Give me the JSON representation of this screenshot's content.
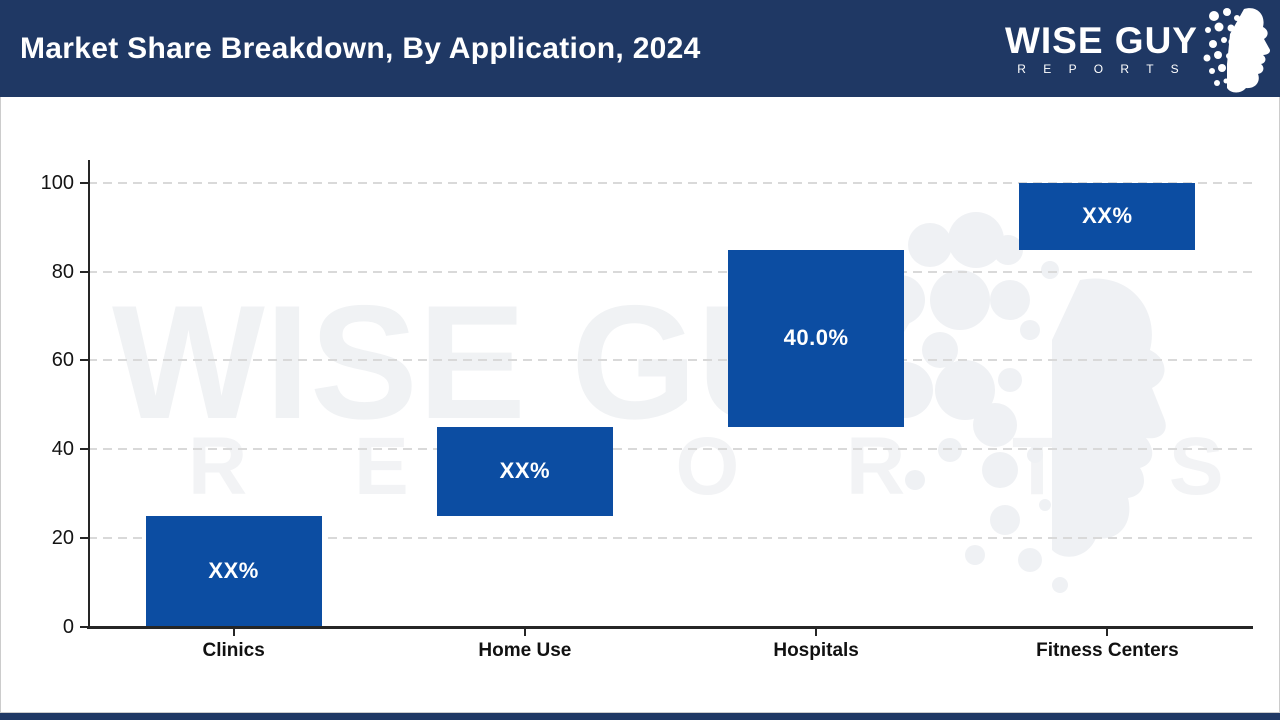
{
  "header": {
    "title": "Market Share Breakdown, By Application, 2024",
    "logo": {
      "name_line": "WISE GUY",
      "sub_line": "R E P O R T S"
    }
  },
  "watermark": {
    "line1": "WISE GUY",
    "line2": "R E P O R T S"
  },
  "chart_data": {
    "type": "bar",
    "variant": "floating-segment waterfall, market share percent",
    "title": "Market Share Breakdown, By Application, 2024",
    "categories": [
      "Clinics",
      "Home Use",
      "Hospitals",
      "Fitness Centers"
    ],
    "series": [
      {
        "name": "Market share segment",
        "ranges_pct": [
          [
            0,
            25
          ],
          [
            25,
            45
          ],
          [
            45,
            85
          ],
          [
            85,
            100
          ]
        ],
        "heights_pct": [
          25,
          20,
          40,
          15
        ]
      }
    ],
    "bar_labels": [
      "XX%",
      "XX%",
      "40.0%",
      "XX%"
    ],
    "xlabel": "",
    "ylabel": "",
    "ylim": [
      0,
      100
    ],
    "yticks": [
      0,
      20,
      40,
      60,
      80,
      100
    ],
    "grid": "horizontal dashed",
    "legend": "none",
    "bar_color": "#0c4da2",
    "bar_label_color": "#ffffff"
  },
  "colors": {
    "header_bg": "#1f3864",
    "bar": "#0c4da2",
    "watermark": "#f0f2f4",
    "gridline": "#d9d9d9",
    "axis": "#262626",
    "text": "#111111",
    "footer_bar": "#1f3864",
    "hairline_border": "#cccccc",
    "page_bg": "#ffffff"
  }
}
